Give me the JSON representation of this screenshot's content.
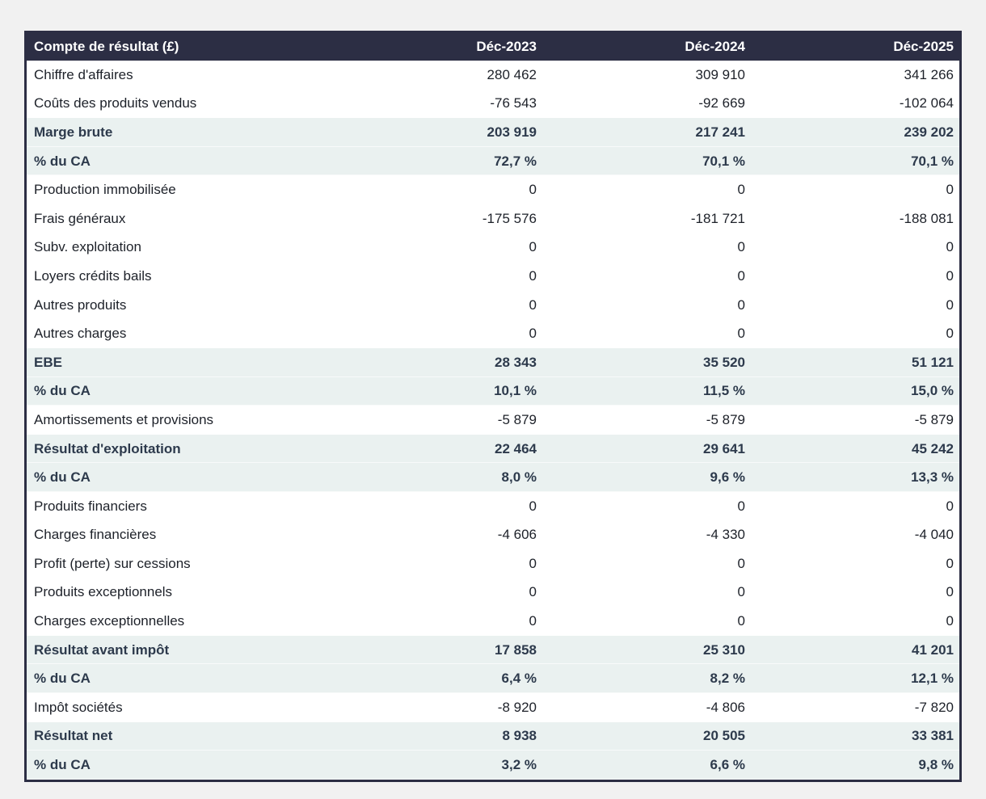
{
  "table": {
    "header": {
      "title": "Compte de résultat (£)",
      "columns": [
        "Déc-2023",
        "Déc-2024",
        "Déc-2025"
      ]
    },
    "rows": [
      {
        "label": "Chiffre d'affaires",
        "values": [
          "280 462",
          "309 910",
          "341 266"
        ],
        "emphasis": false
      },
      {
        "label": "Coûts des produits vendus",
        "values": [
          "-76 543",
          "-92 669",
          "-102 064"
        ],
        "emphasis": false
      },
      {
        "label": "Marge brute",
        "values": [
          "203 919",
          "217 241",
          "239 202"
        ],
        "emphasis": true
      },
      {
        "label": "% du CA",
        "values": [
          "72,7 %",
          "70,1 %",
          "70,1 %"
        ],
        "emphasis": true
      },
      {
        "label": "Production immobilisée",
        "values": [
          "0",
          "0",
          "0"
        ],
        "emphasis": false
      },
      {
        "label": "Frais généraux",
        "values": [
          "-175 576",
          "-181 721",
          "-188 081"
        ],
        "emphasis": false
      },
      {
        "label": "Subv. exploitation",
        "values": [
          "0",
          "0",
          "0"
        ],
        "emphasis": false
      },
      {
        "label": "Loyers crédits bails",
        "values": [
          "0",
          "0",
          "0"
        ],
        "emphasis": false
      },
      {
        "label": "Autres produits",
        "values": [
          "0",
          "0",
          "0"
        ],
        "emphasis": false
      },
      {
        "label": "Autres charges",
        "values": [
          "0",
          "0",
          "0"
        ],
        "emphasis": false
      },
      {
        "label": "EBE",
        "values": [
          "28 343",
          "35 520",
          "51 121"
        ],
        "emphasis": true
      },
      {
        "label": "% du CA",
        "values": [
          "10,1 %",
          "11,5 %",
          "15,0 %"
        ],
        "emphasis": true
      },
      {
        "label": "Amortissements et provisions",
        "values": [
          "-5 879",
          "-5 879",
          "-5 879"
        ],
        "emphasis": false
      },
      {
        "label": "Résultat d'exploitation",
        "values": [
          "22 464",
          "29 641",
          "45 242"
        ],
        "emphasis": true
      },
      {
        "label": "% du CA",
        "values": [
          "8,0 %",
          "9,6 %",
          "13,3 %"
        ],
        "emphasis": true
      },
      {
        "label": "Produits financiers",
        "values": [
          "0",
          "0",
          "0"
        ],
        "emphasis": false
      },
      {
        "label": "Charges financières",
        "values": [
          "-4 606",
          "-4 330",
          "-4 040"
        ],
        "emphasis": false
      },
      {
        "label": "Profit (perte) sur cessions",
        "values": [
          "0",
          "0",
          "0"
        ],
        "emphasis": false
      },
      {
        "label": "Produits exceptionnels",
        "values": [
          "0",
          "0",
          "0"
        ],
        "emphasis": false
      },
      {
        "label": "Charges exceptionnelles",
        "values": [
          "0",
          "0",
          "0"
        ],
        "emphasis": false
      },
      {
        "label": "Résultat avant impôt",
        "values": [
          "17 858",
          "25 310",
          "41 201"
        ],
        "emphasis": true
      },
      {
        "label": "% du CA",
        "values": [
          "6,4 %",
          "8,2 %",
          "12,1 %"
        ],
        "emphasis": true
      },
      {
        "label": "Impôt sociétés",
        "values": [
          "-8 920",
          "-4 806",
          "-7 820"
        ],
        "emphasis": false
      },
      {
        "label": "Résultat net",
        "values": [
          "8 938",
          "20 505",
          "33 381"
        ],
        "emphasis": true
      },
      {
        "label": "% du CA",
        "values": [
          "3,2 %",
          "6,6 %",
          "9,8 %"
        ],
        "emphasis": true
      }
    ]
  },
  "colors": {
    "header_bg": "#2c2e44",
    "header_fg": "#ffffff",
    "row_alt_bg": "#eaf1f0",
    "border": "#2c2e44",
    "text_normal": "#1d2129",
    "text_total": "#2d3a4c",
    "page_bg": "#f1f1f1"
  },
  "chart_data": {
    "type": "table",
    "title": "Compte de résultat (£)",
    "columns": [
      "Déc-2023",
      "Déc-2024",
      "Déc-2025"
    ],
    "rows": [
      {
        "label": "Chiffre d'affaires",
        "unit": "£",
        "values": [
          280462,
          309910,
          341266
        ]
      },
      {
        "label": "Coûts des produits vendus",
        "unit": "£",
        "values": [
          -76543,
          -92669,
          -102064
        ]
      },
      {
        "label": "Marge brute",
        "unit": "£",
        "values": [
          203919,
          217241,
          239202
        ]
      },
      {
        "label": "% du CA (marge brute)",
        "unit": "%",
        "values": [
          72.7,
          70.1,
          70.1
        ]
      },
      {
        "label": "Production immobilisée",
        "unit": "£",
        "values": [
          0,
          0,
          0
        ]
      },
      {
        "label": "Frais généraux",
        "unit": "£",
        "values": [
          -175576,
          -181721,
          -188081
        ]
      },
      {
        "label": "Subv. exploitation",
        "unit": "£",
        "values": [
          0,
          0,
          0
        ]
      },
      {
        "label": "Loyers crédits bails",
        "unit": "£",
        "values": [
          0,
          0,
          0
        ]
      },
      {
        "label": "Autres produits",
        "unit": "£",
        "values": [
          0,
          0,
          0
        ]
      },
      {
        "label": "Autres charges",
        "unit": "£",
        "values": [
          0,
          0,
          0
        ]
      },
      {
        "label": "EBE",
        "unit": "£",
        "values": [
          28343,
          35520,
          51121
        ]
      },
      {
        "label": "% du CA (EBE)",
        "unit": "%",
        "values": [
          10.1,
          11.5,
          15.0
        ]
      },
      {
        "label": "Amortissements et provisions",
        "unit": "£",
        "values": [
          -5879,
          -5879,
          -5879
        ]
      },
      {
        "label": "Résultat d'exploitation",
        "unit": "£",
        "values": [
          22464,
          29641,
          45242
        ]
      },
      {
        "label": "% du CA (résultat d'exploitation)",
        "unit": "%",
        "values": [
          8.0,
          9.6,
          13.3
        ]
      },
      {
        "label": "Produits financiers",
        "unit": "£",
        "values": [
          0,
          0,
          0
        ]
      },
      {
        "label": "Charges financières",
        "unit": "£",
        "values": [
          -4606,
          -4330,
          -4040
        ]
      },
      {
        "label": "Profit (perte) sur cessions",
        "unit": "£",
        "values": [
          0,
          0,
          0
        ]
      },
      {
        "label": "Produits exceptionnels",
        "unit": "£",
        "values": [
          0,
          0,
          0
        ]
      },
      {
        "label": "Charges exceptionnelles",
        "unit": "£",
        "values": [
          0,
          0,
          0
        ]
      },
      {
        "label": "Résultat avant impôt",
        "unit": "£",
        "values": [
          17858,
          25310,
          41201
        ]
      },
      {
        "label": "% du CA (résultat avant impôt)",
        "unit": "%",
        "values": [
          6.4,
          8.2,
          12.1
        ]
      },
      {
        "label": "Impôt sociétés",
        "unit": "£",
        "values": [
          -8920,
          -4806,
          -7820
        ]
      },
      {
        "label": "Résultat net",
        "unit": "£",
        "values": [
          8938,
          20505,
          33381
        ]
      },
      {
        "label": "% du CA (résultat net)",
        "unit": "%",
        "values": [
          3.2,
          6.6,
          9.8
        ]
      }
    ]
  }
}
